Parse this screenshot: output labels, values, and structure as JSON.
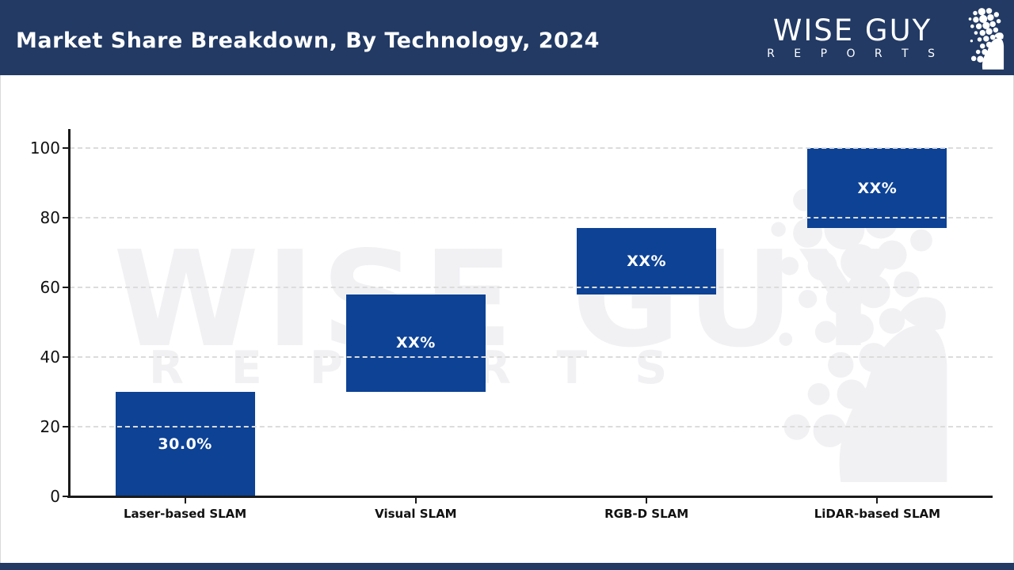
{
  "header": {
    "title": "Market Share Breakdown, By Technology, 2024",
    "logo": {
      "line1": "WISE GUY",
      "line2": "R E P O R T S"
    }
  },
  "watermark": {
    "line1": "WISE GUY",
    "line2": "REPORTS"
  },
  "chart_data": {
    "type": "bar",
    "subtype": "floating-waterfall",
    "title": "Market Share Breakdown, By Technology, 2024",
    "categories": [
      "Laser-based SLAM",
      "Visual SLAM",
      "RGB-D SLAM",
      "LiDAR-based SLAM"
    ],
    "segments": [
      {
        "category": "Laser-based SLAM",
        "start": 0,
        "end": 30,
        "value": 30,
        "label": "30.0%"
      },
      {
        "category": "Visual SLAM",
        "start": 30,
        "end": 58,
        "value": 28,
        "label": "XX%"
      },
      {
        "category": "RGB-D SLAM",
        "start": 58,
        "end": 77,
        "value": 19,
        "label": "XX%"
      },
      {
        "category": "LiDAR-based SLAM",
        "start": 77,
        "end": 100,
        "value": 23,
        "label": "XX%"
      }
    ],
    "xlabel": "",
    "ylabel": "",
    "ylim": [
      0,
      105
    ],
    "yticks": [
      0,
      20,
      40,
      60,
      80,
      100
    ],
    "grid": "horizontal-dashed",
    "legend": "none",
    "bar_color": "#0d4295",
    "bar_label_color": "#ffffff"
  },
  "colors": {
    "header_bg": "#223a64",
    "footer_bg": "#223a64",
    "bar": "#0d4295",
    "grid": "#dcdcdc",
    "axis": "#1a1a1a",
    "watermark": "#f1f1f4",
    "title_text": "#ffffff"
  }
}
